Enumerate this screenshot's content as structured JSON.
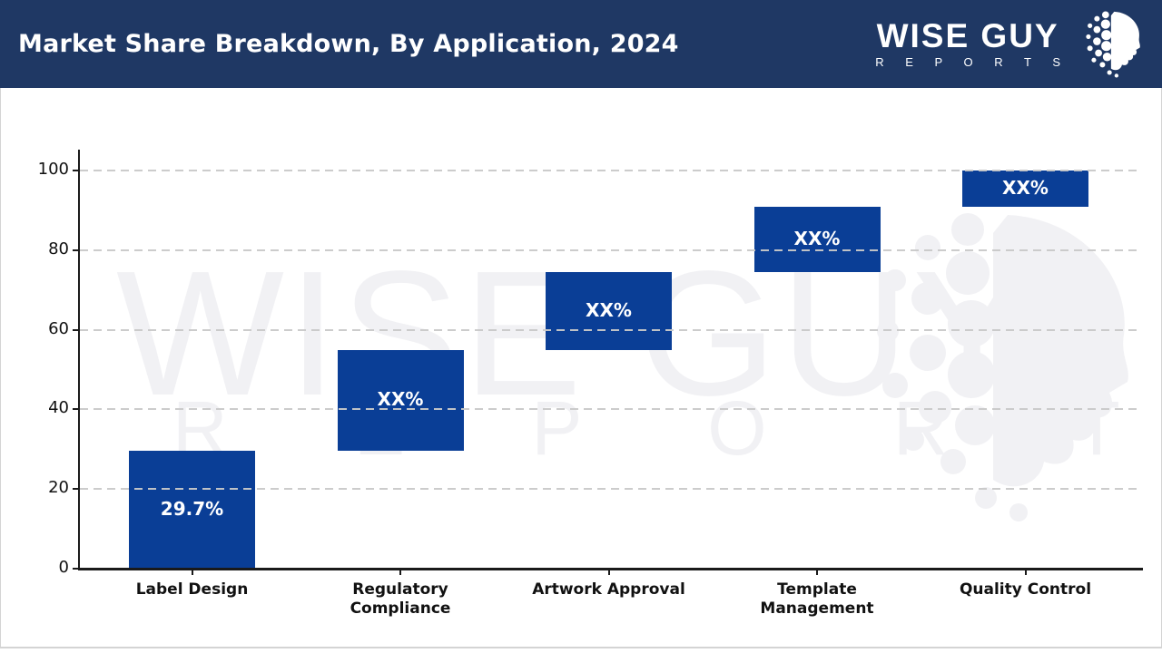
{
  "header": {
    "title": "Market Share Breakdown, By Application, 2024",
    "logo": {
      "primary": "WISE GUY",
      "secondary": "R E P O R T S",
      "face_icon": "dotted-head-profile"
    }
  },
  "watermark": {
    "primary": "WISE GUY",
    "secondary": "R E P O R T S",
    "face_icon": "dotted-head-profile"
  },
  "chart_data": {
    "type": "bar",
    "subtype": "waterfall",
    "title": "Market Share Breakdown, By Application, 2024",
    "categories": [
      "Label Design",
      "Regulatory Compliance",
      "Artwork Approval",
      "Template Management",
      "Quality Control"
    ],
    "segments": [
      {
        "category": "Label Design",
        "start": 0,
        "end": 29.7,
        "label": "29.7%"
      },
      {
        "category": "Regulatory Compliance",
        "start": 29.7,
        "end": 54.9,
        "label": "XX%"
      },
      {
        "category": "Artwork Approval",
        "start": 54.9,
        "end": 74.4,
        "label": "XX%"
      },
      {
        "category": "Template Management",
        "start": 74.4,
        "end": 90.9,
        "label": "XX%"
      },
      {
        "category": "Quality Control",
        "start": 90.9,
        "end": 100,
        "label": "XX%"
      }
    ],
    "xlabel": "",
    "ylabel": "",
    "yticks": [
      0,
      20,
      40,
      60,
      80,
      100
    ],
    "ylim": [
      0,
      104
    ],
    "grid": {
      "axis": "y",
      "style": "dashed",
      "on_top": true
    },
    "legend": "none",
    "colors": {
      "bar": "#0a3e96",
      "bar_label_text": "#ffffff",
      "axis": "#1a1a1a",
      "tick_label": "#111111",
      "gridline": "#c9c9c9",
      "header_bg": "#1f3864",
      "header_text": "#ffffff",
      "watermark": "#f1f1f4",
      "background": "#ffffff"
    }
  }
}
